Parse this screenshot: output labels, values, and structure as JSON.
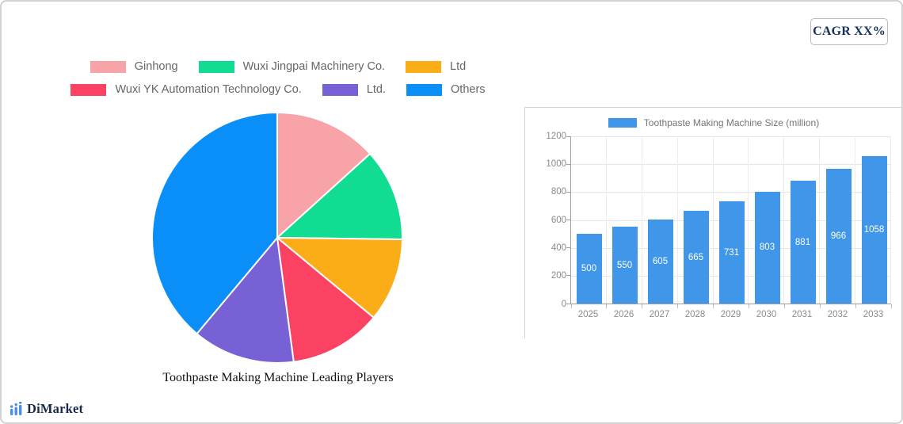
{
  "badge": {
    "label": "CAGR XX%"
  },
  "logo": {
    "text": "DiMarket",
    "accent_color": "#4a90e8",
    "text_color": "#16284d"
  },
  "chart_data": [
    {
      "type": "pie",
      "title": "Toothpaste Making Machine Leading Players",
      "legend_position": "top",
      "slices": [
        {
          "label": "Ginhong",
          "value": 13.3,
          "color": "#F7A3A8"
        },
        {
          "label": "Wuxi Jingpai Machinery Co.",
          "value": 11.9,
          "color": "#10DD92"
        },
        {
          "label": "Ltd",
          "value": 10.8,
          "color": "#FBAD18"
        },
        {
          "label": "Wuxi YK Automation Technology Co.",
          "value": 11.9,
          "color": "#FB4263"
        },
        {
          "label": "Ltd.",
          "value": 13.2,
          "color": "#7761D4"
        },
        {
          "label": "Others",
          "value": 38.9,
          "color": "#0A8FF9"
        }
      ]
    },
    {
      "type": "bar",
      "legend": "Toothpaste Making Machine Size (million)",
      "bar_color": "#4097EA",
      "categories": [
        "2025",
        "2026",
        "2027",
        "2028",
        "2029",
        "2030",
        "2031",
        "2032",
        "2033"
      ],
      "values": [
        500,
        550,
        605,
        665,
        731,
        803,
        881,
        966,
        1058
      ],
      "ylim": [
        0,
        1200
      ],
      "yticks": [
        0,
        200,
        400,
        600,
        800,
        1000,
        1200
      ],
      "grid": true,
      "value_label_style": "inside-white"
    }
  ]
}
